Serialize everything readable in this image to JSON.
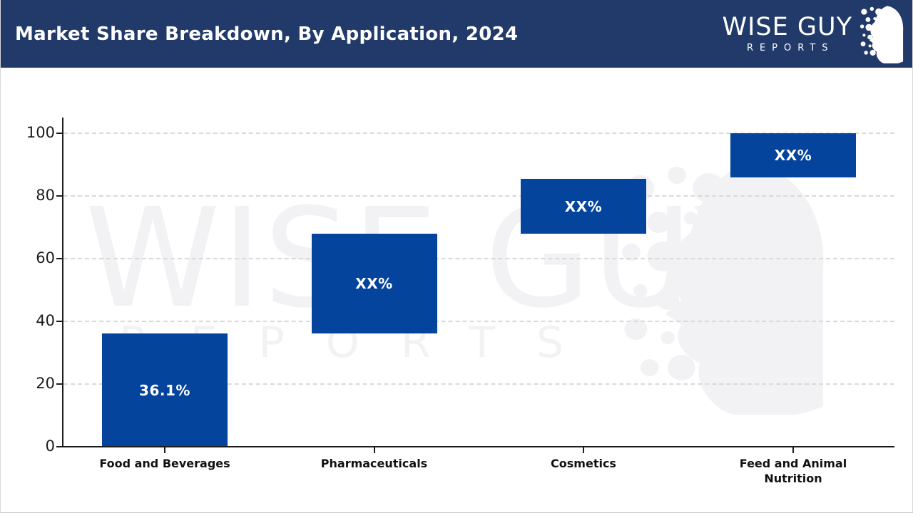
{
  "header": {
    "title": "Market Share Breakdown, By Application, 2024",
    "logo": {
      "line1": "WISE GUY",
      "line2": "REPORTS"
    }
  },
  "watermark": {
    "line1": "WISE GUY",
    "line2": "REPORTS"
  },
  "colors": {
    "header_bg": "#213a69",
    "bar": "#05449d",
    "bar_label": "#ffffff",
    "axis": "#1c1c1c",
    "gridline": "#d9d9d9",
    "watermark": "#f2f2f5"
  },
  "chart_data": {
    "type": "bar",
    "subtype": "floating-segment-waterfall",
    "title": "Market Share Breakdown, By Application, 2024",
    "xlabel": "",
    "ylabel": "",
    "ylim": [
      0,
      100
    ],
    "yticks": [
      0,
      20,
      40,
      60,
      80,
      100
    ],
    "grid": "horizontal-dashed",
    "bar_color": "#05449d",
    "categories": [
      "Food and Beverages",
      "Pharmaceuticals",
      "Cosmetics",
      "Feed and Animal Nutrition"
    ],
    "bars": [
      {
        "category": "Food and Beverages",
        "start": 0,
        "end": 36.1,
        "label": "36.1%"
      },
      {
        "category": "Pharmaceuticals",
        "start": 36.1,
        "end": 68.0,
        "label": "XX%"
      },
      {
        "category": "Cosmetics",
        "start": 68.0,
        "end": 85.4,
        "label": "XX%"
      },
      {
        "category": "Feed and Animal Nutrition",
        "start": 85.8,
        "end": 100,
        "label": "XX%"
      }
    ]
  }
}
